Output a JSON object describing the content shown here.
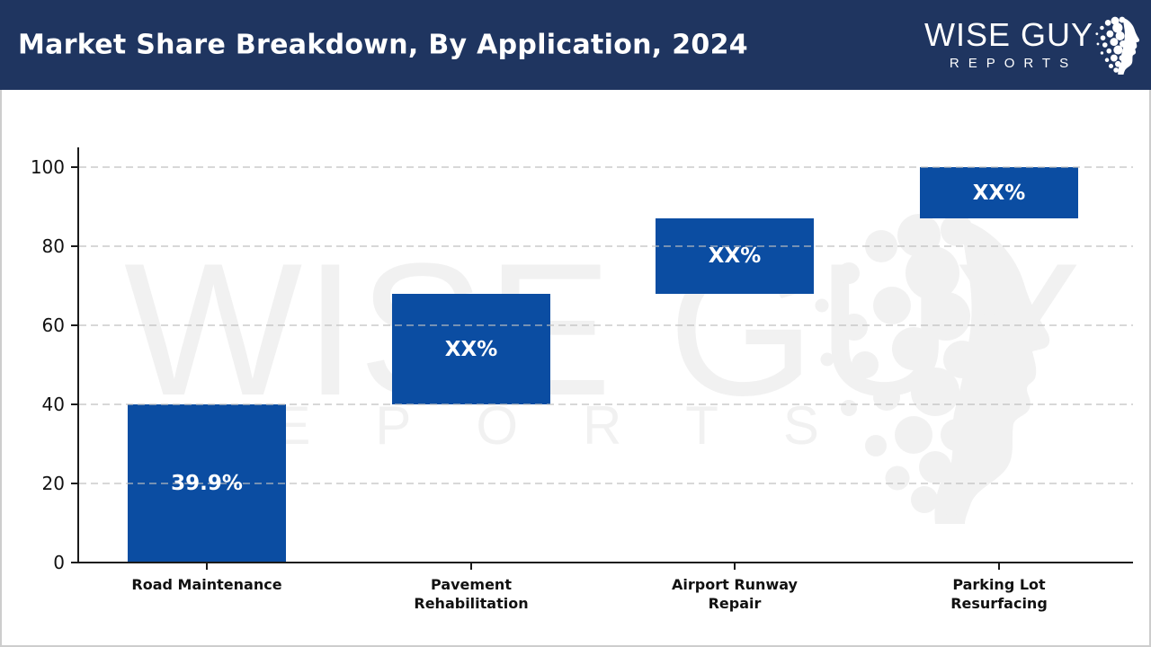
{
  "header": {
    "title": "Market Share Breakdown, By Application, 2024",
    "logo": {
      "name": "WISE GUY",
      "subtext": "REPORTS"
    }
  },
  "watermark": {
    "name": "WISE GUY",
    "subtext": "REPORTS"
  },
  "colors": {
    "header_bg": "#1f3560",
    "bar": "#0b4da2",
    "bar_label": "#ffffff",
    "axis": "#1a1a1a",
    "grid": "#bebebe",
    "watermark": "#f1f1f1"
  },
  "chart_data": {
    "type": "bar",
    "subtype": "waterfall",
    "title": "Market Share Breakdown, By Application, 2024",
    "categories": [
      "Road Maintenance",
      "Pavement\nRehabilitation",
      "Airport Runway\nRepair",
      "Parking Lot\nResurfacing"
    ],
    "segments": [
      {
        "category": "Road Maintenance",
        "start": 0,
        "end": 39.9,
        "label": "39.9%"
      },
      {
        "category": "Pavement Rehabilitation",
        "start": 39.9,
        "end": 68,
        "label": "XX%"
      },
      {
        "category": "Airport Runway Repair",
        "start": 68,
        "end": 87,
        "label": "XX%"
      },
      {
        "category": "Parking Lot Resurfacing",
        "start": 87,
        "end": 100,
        "label": "XX%"
      }
    ],
    "yticks": [
      0,
      20,
      40,
      60,
      80,
      100
    ],
    "ylim": [
      0,
      105
    ],
    "grid": true,
    "legend": false,
    "xlabel": "",
    "ylabel": ""
  }
}
